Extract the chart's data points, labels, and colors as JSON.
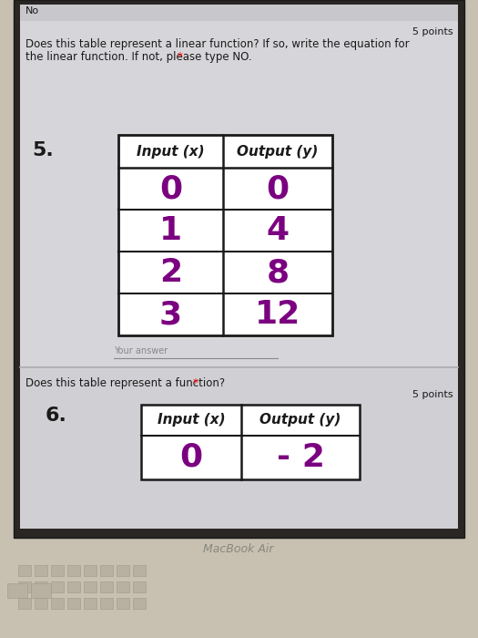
{
  "bg_color_top": "#b8b4b0",
  "bg_color_screen": "#d4d2d0",
  "screen_content_bg": "#dcdcde",
  "section1_bg": "#d8d8da",
  "section2_bg": "#e0e0e2",
  "title_text": "No",
  "points_text_top": "5 points",
  "question_line1": "Does this table represent a linear function? If so, write the equation for",
  "question_line2": "the linear function. If not, please type NO.",
  "question_asterisk": "*",
  "problem_number": "5.",
  "table5_headers": [
    "Input (x)",
    "Output (y)"
  ],
  "table5_inputs": [
    "0",
    "1",
    "2",
    "3"
  ],
  "table5_outputs": [
    "0",
    "4",
    "8",
    "12"
  ],
  "your_answer_label": "Your answer",
  "question2_line": "Does this table represent a function?",
  "question2_asterisk": "*",
  "points_text_bottom": "5 points",
  "problem_number2": "6.",
  "table6_headers": [
    "Input (x)",
    "Output (y)"
  ],
  "table6_inputs": [
    "0"
  ],
  "table6_outputs": [
    "- 2"
  ],
  "macbook_label": "MacBook Air",
  "purple_color": "#7b0080",
  "black_color": "#1a1a1a",
  "dark_gray": "#444444",
  "mid_gray": "#888888",
  "bezel_color": "#2a2624",
  "keyboard_color": "#c8c0b0",
  "header_font_size": 11,
  "data_font_size": 22,
  "label_font_size": 8,
  "small_font_size": 8,
  "num_font_size": 14
}
